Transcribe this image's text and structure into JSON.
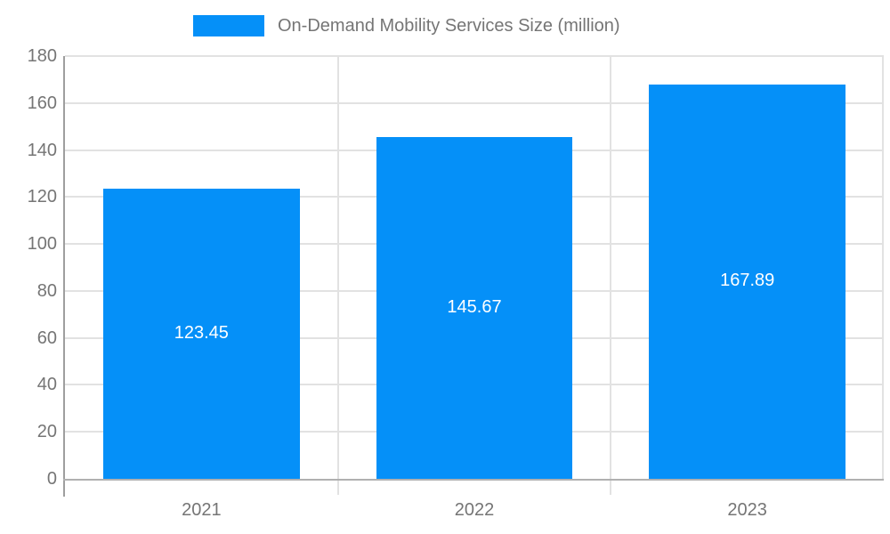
{
  "chart_data": {
    "type": "bar",
    "title": "On-Demand Mobility Services Size (million)",
    "categories": [
      "2021",
      "2022",
      "2023"
    ],
    "series": [
      {
        "name": "On-Demand Mobility Services Size (million)",
        "values": [
          123.45,
          145.67,
          167.89
        ]
      }
    ],
    "value_labels": [
      "123.45",
      "145.67",
      "167.89"
    ],
    "xlabel": "",
    "ylabel": "",
    "ylim": [
      0,
      180
    ],
    "ytick_step": 20,
    "yticks": [
      "0",
      "20",
      "40",
      "60",
      "80",
      "100",
      "120",
      "140",
      "160",
      "180"
    ],
    "grid": true,
    "legend_position": "top",
    "colors": {
      "bar": "#0590F8",
      "bar_value_label": "#ffffff",
      "axis_text": "#757575",
      "gridline": "#e2e2e2",
      "y_axis_line": "#9e9e9e",
      "x_axis_line": "#b0b0b0",
      "background": "#ffffff"
    }
  }
}
